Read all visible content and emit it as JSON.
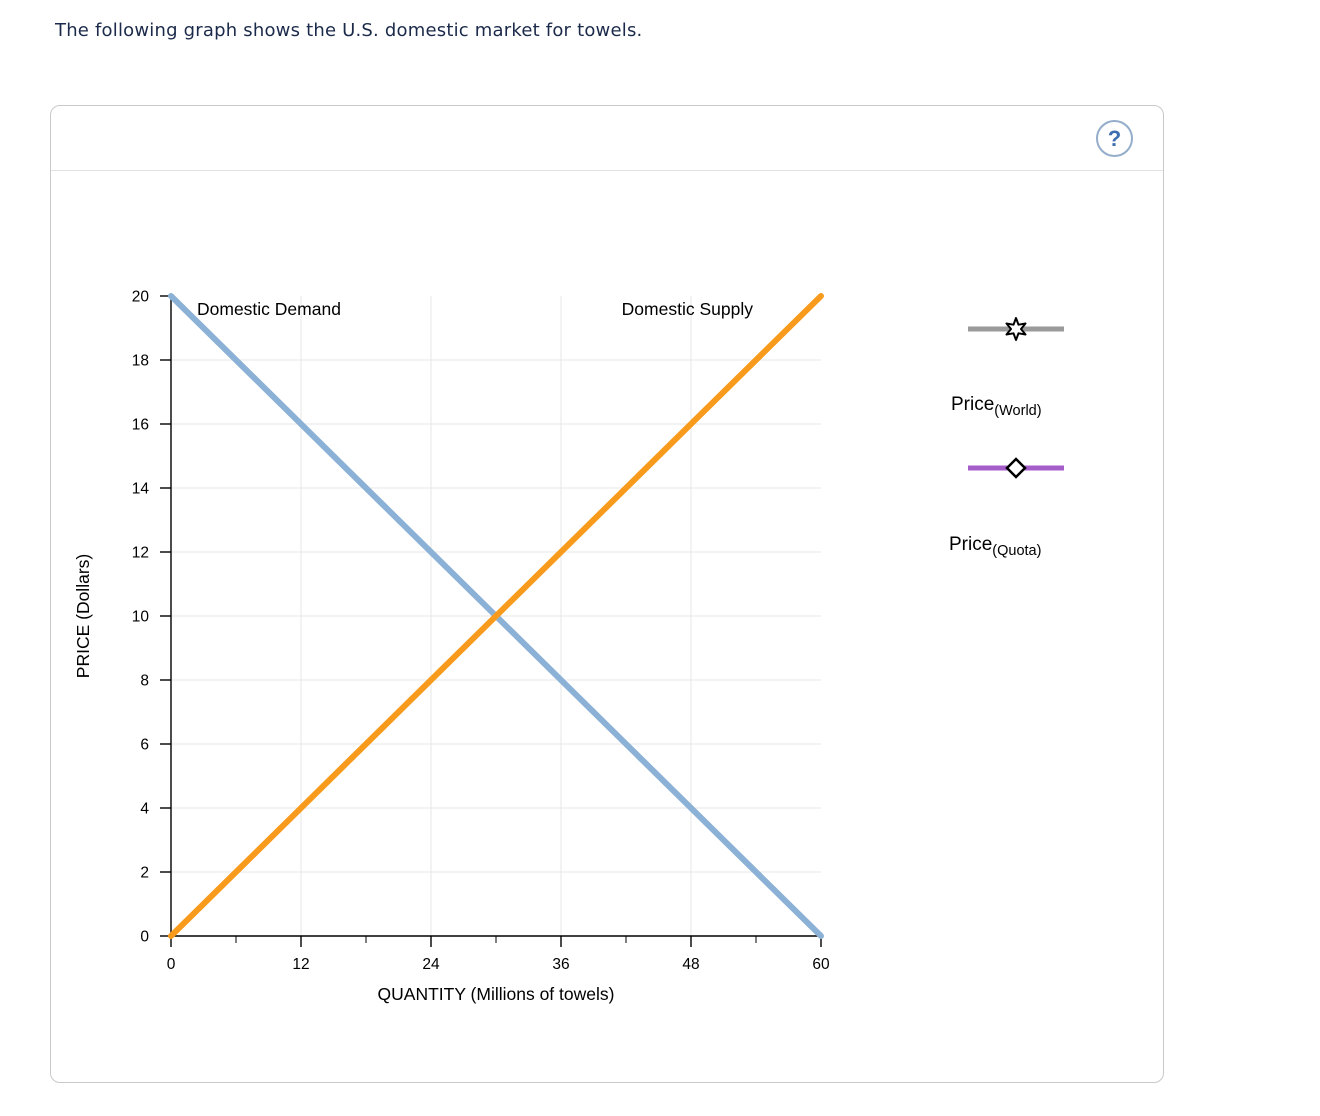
{
  "page": {
    "intro_text": "The following graph shows the U.S. domestic market for towels."
  },
  "panel": {
    "help_label": "?"
  },
  "chart_data": {
    "type": "line",
    "title": "",
    "xlabel": "QUANTITY (Millions of towels)",
    "ylabel": "PRICE (Dollars)",
    "xlim": [
      0,
      60
    ],
    "ylim": [
      0,
      20
    ],
    "x_ticks": [
      0,
      12,
      24,
      36,
      48,
      60
    ],
    "x_minor_ticks": [
      6,
      18,
      30,
      42,
      54
    ],
    "y_ticks": [
      0,
      2,
      4,
      6,
      8,
      10,
      12,
      14,
      16,
      18,
      20
    ],
    "grid": true,
    "grid_color": "#e7e7e7",
    "axis_color": "#000000",
    "series": [
      {
        "name": "Domestic Demand",
        "color": "#8cb1d6",
        "x": [
          0,
          60
        ],
        "y": [
          20,
          0
        ],
        "label_pos": {
          "x": 2.4,
          "y": 19.4
        }
      },
      {
        "name": "Domestic Supply",
        "color": "#f89b1c",
        "x": [
          0,
          60
        ],
        "y": [
          0,
          20
        ],
        "label_pos": {
          "x": 41.6,
          "y": 19.4
        }
      }
    ]
  },
  "legend": [
    {
      "name": "Price (World)",
      "label_main": "Price",
      "label_sub": "(World)",
      "line_color": "#9a9a9a",
      "marker": "star-icon"
    },
    {
      "name": "Price (Quota)",
      "label_main": "Price",
      "label_sub": "(Quota)",
      "line_color": "#a55ec9",
      "marker": "diamond-icon"
    }
  ]
}
